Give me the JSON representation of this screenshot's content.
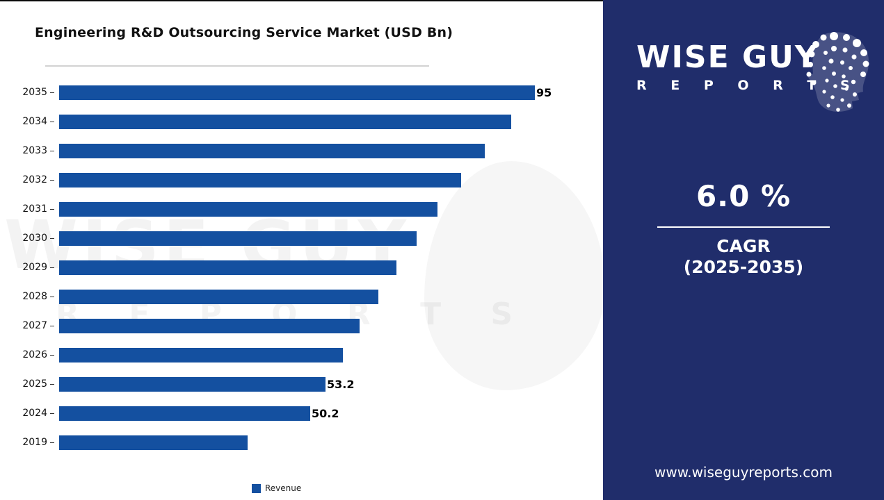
{
  "title": "Engineering R&D Outsourcing Service Market (USD Bn)",
  "legend": {
    "label": "Revenue"
  },
  "watermark": {
    "line1": "WISE GUY",
    "line2": "R E P O R T S"
  },
  "side_panel": {
    "logo_line1": "WISE GUY",
    "logo_line2": "R E P O R T S",
    "cagr_value": "6.0 %",
    "cagr_label_line1": "CAGR",
    "cagr_label_line2": "(2025-2035)",
    "website": "www.wiseguyreports.com",
    "bg_color": "#202d6b"
  },
  "chart_data": {
    "type": "bar",
    "orientation": "horizontal",
    "title": "Engineering R&D Outsourcing Service Market (USD Bn)",
    "series_name": "Revenue",
    "bar_color": "#1450a0",
    "xlim": [
      0,
      105
    ],
    "grid": false,
    "legend_position": "bottom",
    "categories": [
      "2035",
      "2034",
      "2033",
      "2032",
      "2031",
      "2030",
      "2029",
      "2028",
      "2027",
      "2026",
      "2025",
      "2024",
      "2019"
    ],
    "values": [
      95,
      90.3,
      85.0,
      80.3,
      75.6,
      71.4,
      67.3,
      63.7,
      60.0,
      56.6,
      53.2,
      50.2,
      37.6
    ],
    "value_labels": [
      "95",
      "",
      "",
      "",
      "",
      "",
      "",
      "",
      "",
      "",
      "53.2",
      "50.2",
      ""
    ]
  }
}
